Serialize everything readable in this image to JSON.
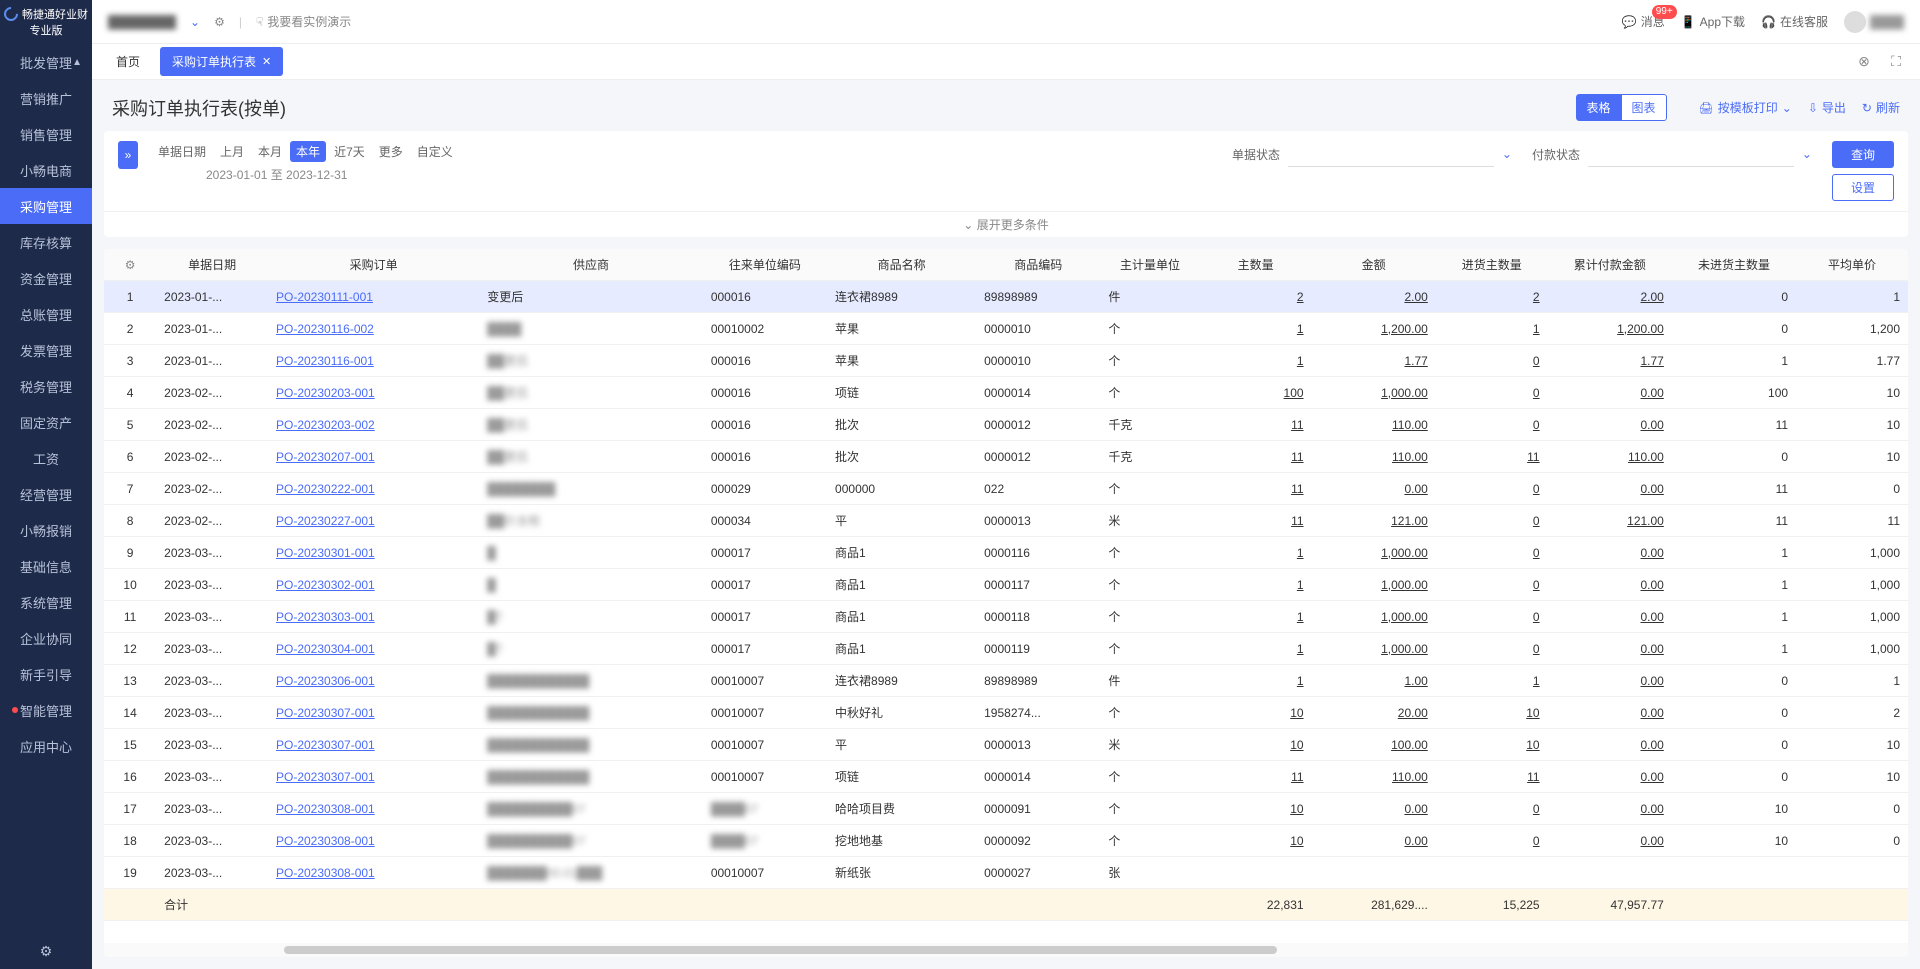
{
  "brand": {
    "name": "畅捷通好业财",
    "edition": "专业版"
  },
  "topbar": {
    "company": "████████",
    "demo": "我要看实例演示",
    "msg": "消息",
    "msg_badge": "99+",
    "app": "App下载",
    "service": "在线客服",
    "user": "████"
  },
  "sidebar": {
    "items": [
      {
        "label": "批发管理",
        "caret": "▲"
      },
      {
        "label": "营销推广"
      },
      {
        "label": "销售管理"
      },
      {
        "label": "小畅电商"
      },
      {
        "label": "采购管理",
        "active": true
      },
      {
        "label": "库存核算"
      },
      {
        "label": "资金管理"
      },
      {
        "label": "总账管理"
      },
      {
        "label": "发票管理"
      },
      {
        "label": "税务管理"
      },
      {
        "label": "固定资产"
      },
      {
        "label": "工资"
      },
      {
        "label": "经营管理"
      },
      {
        "label": "小畅报销"
      },
      {
        "label": "基础信息"
      },
      {
        "label": "系统管理"
      },
      {
        "label": "企业协同"
      },
      {
        "label": "新手引导"
      },
      {
        "label": "智能管理",
        "dot": true
      },
      {
        "label": "应用中心"
      }
    ]
  },
  "tabs": {
    "home": "首页",
    "active": "采购订单执行表"
  },
  "page": {
    "title": "采购订单执行表(按单)",
    "view_table": "表格",
    "view_chart": "图表",
    "print": "按模板打印",
    "export": "导出",
    "refresh": "刷新"
  },
  "filter": {
    "date_label": "单据日期",
    "opts": [
      "上月",
      "本月",
      "本年",
      "近7天",
      "更多",
      "自定义"
    ],
    "date_range": "2023-01-01 至 2023-12-31",
    "status_label": "单据状态",
    "pay_label": "付款状态",
    "query": "查询",
    "setting": "设置",
    "expand": "展开更多条件"
  },
  "table": {
    "headers": [
      "单据日期",
      "采购订单",
      "供应商",
      "往来单位编码",
      "商品名称",
      "商品编码",
      "主计量单位",
      "主数量",
      "金额",
      "进货主数量",
      "累计付款金额",
      "未进货主数量",
      "平均单价"
    ],
    "rows": [
      {
        "n": 1,
        "date": "2023-01-...",
        "po": "PO-20230111-001",
        "sup": "变更后",
        "sup_blur": false,
        "code": "000016",
        "prod": "连衣裙8989",
        "pcode": "89898989",
        "unit": "件",
        "qty": "2",
        "amt": "2.00",
        "in": "2",
        "paid": "2.00",
        "unin": "0",
        "avg": "1"
      },
      {
        "n": 2,
        "date": "2023-01-...",
        "po": "PO-20230116-002",
        "sup": "████",
        "sup_blur": true,
        "code": "00010002",
        "prod": "苹果",
        "pcode": "0000010",
        "unit": "个",
        "qty": "1",
        "amt": "1,200.00",
        "in": "1",
        "paid": "1,200.00",
        "unin": "0",
        "avg": "1,200"
      },
      {
        "n": 3,
        "date": "2023-01-...",
        "po": "PO-20230116-001",
        "sup": "██更后",
        "sup_blur": true,
        "code": "000016",
        "prod": "苹果",
        "pcode": "0000010",
        "unit": "个",
        "qty": "1",
        "amt": "1.77",
        "in": "0",
        "paid": "1.77",
        "unin": "1",
        "avg": "1.77"
      },
      {
        "n": 4,
        "date": "2023-02-...",
        "po": "PO-20230203-001",
        "sup": "██更后",
        "sup_blur": true,
        "code": "000016",
        "prod": "项链",
        "pcode": "0000014",
        "unit": "个",
        "qty": "100",
        "amt": "1,000.00",
        "in": "0",
        "paid": "0.00",
        "unin": "100",
        "avg": "10"
      },
      {
        "n": 5,
        "date": "2023-02-...",
        "po": "PO-20230203-002",
        "sup": "██更后",
        "sup_blur": true,
        "code": "000016",
        "prod": "批次",
        "pcode": "0000012",
        "unit": "千克",
        "qty": "11",
        "amt": "110.00",
        "in": "0",
        "paid": "0.00",
        "unin": "11",
        "avg": "10"
      },
      {
        "n": 6,
        "date": "2023-02-...",
        "po": "PO-20230207-001",
        "sup": "██更后",
        "sup_blur": true,
        "code": "000016",
        "prod": "批次",
        "pcode": "0000012",
        "unit": "千克",
        "qty": "11",
        "amt": "110.00",
        "in": "11",
        "paid": "110.00",
        "unin": "0",
        "avg": "10"
      },
      {
        "n": 7,
        "date": "2023-02-...",
        "po": "PO-20230222-001",
        "sup": "████████",
        "sup_blur": true,
        "code": "000029",
        "prod": "000000",
        "pcode": "022",
        "unit": "个",
        "qty": "11",
        "amt": "0.00",
        "in": "0",
        "paid": "0.00",
        "unin": "11",
        "avg": "0"
      },
      {
        "n": 8,
        "date": "2023-02-...",
        "po": "PO-20230227-001",
        "sup": "██价含税",
        "sup_blur": true,
        "code": "000034",
        "prod": "平",
        "pcode": "0000013",
        "unit": "米",
        "qty": "11",
        "amt": "121.00",
        "in": "0",
        "paid": "121.00",
        "unin": "11",
        "avg": "11"
      },
      {
        "n": 9,
        "date": "2023-03-...",
        "po": "PO-20230301-001",
        "sup": "█",
        "sup_blur": true,
        "code": "000017",
        "prod": "商品1",
        "pcode": "0000116",
        "unit": "个",
        "qty": "1",
        "amt": "1,000.00",
        "in": "0",
        "paid": "0.00",
        "unin": "1",
        "avg": "1,000"
      },
      {
        "n": 10,
        "date": "2023-03-...",
        "po": "PO-20230302-001",
        "sup": "█",
        "sup_blur": true,
        "code": "000017",
        "prod": "商品1",
        "pcode": "0000117",
        "unit": "个",
        "qty": "1",
        "amt": "1,000.00",
        "in": "0",
        "paid": "0.00",
        "unin": "1",
        "avg": "1,000"
      },
      {
        "n": 11,
        "date": "2023-03-...",
        "po": "PO-20230303-001",
        "sup": "█T",
        "sup_blur": true,
        "code": "000017",
        "prod": "商品1",
        "pcode": "0000118",
        "unit": "个",
        "qty": "1",
        "amt": "1,000.00",
        "in": "0",
        "paid": "0.00",
        "unin": "1",
        "avg": "1,000"
      },
      {
        "n": 12,
        "date": "2023-03-...",
        "po": "PO-20230304-001",
        "sup": "█T",
        "sup_blur": true,
        "code": "000017",
        "prod": "商品1",
        "pcode": "0000119",
        "unit": "个",
        "qty": "1",
        "amt": "1,000.00",
        "in": "0",
        "paid": "0.00",
        "unin": "1",
        "avg": "1,000"
      },
      {
        "n": 13,
        "date": "2023-03-...",
        "po": "PO-20230306-001",
        "sup": "████████████",
        "sup_blur": true,
        "code": "00010007",
        "prod": "连衣裙8989",
        "pcode": "89898989",
        "unit": "件",
        "qty": "1",
        "amt": "1.00",
        "in": "1",
        "paid": "0.00",
        "unin": "0",
        "avg": "1"
      },
      {
        "n": 14,
        "date": "2023-03-...",
        "po": "PO-20230307-001",
        "sup": "████████████",
        "sup_blur": true,
        "code": "00010007",
        "prod": "中秋好礼",
        "pcode": "1958274...",
        "unit": "个",
        "qty": "10",
        "amt": "20.00",
        "in": "10",
        "paid": "0.00",
        "unin": "0",
        "avg": "2"
      },
      {
        "n": 15,
        "date": "2023-03-...",
        "po": "PO-20230307-001",
        "sup": "████████████",
        "sup_blur": true,
        "code": "00010007",
        "prod": "平",
        "pcode": "0000013",
        "unit": "米",
        "qty": "10",
        "amt": "100.00",
        "in": "10",
        "paid": "0.00",
        "unin": "0",
        "avg": "10"
      },
      {
        "n": 16,
        "date": "2023-03-...",
        "po": "PO-20230307-001",
        "sup": "████████████",
        "sup_blur": true,
        "code": "00010007",
        "prod": "项链",
        "pcode": "0000014",
        "unit": "个",
        "qty": "11",
        "amt": "110.00",
        "in": "11",
        "paid": "0.00",
        "unin": "0",
        "avg": "10"
      },
      {
        "n": 17,
        "date": "2023-03-...",
        "po": "PO-20230308-001",
        "sup": "██████████07",
        "sup_blur": true,
        "code": "████07",
        "prod": "哈哈项目费",
        "pcode": "0000091",
        "unit": "个",
        "qty": "10",
        "amt": "0.00",
        "in": "0",
        "paid": "0.00",
        "unin": "10",
        "avg": "0"
      },
      {
        "n": 18,
        "date": "2023-03-...",
        "po": "PO-20230308-001",
        "sup": "██████████07",
        "sup_blur": true,
        "code": "████07",
        "prod": "挖地地基",
        "pcode": "0000092",
        "unit": "个",
        "qty": "10",
        "amt": "0.00",
        "in": "0",
        "paid": "0.00",
        "unin": "10",
        "avg": "0"
      },
      {
        "n": 19,
        "date": "2023-03-...",
        "po": "PO-20230308-001",
        "sup": "███████00.01███",
        "sup_blur": true,
        "code": "00010007",
        "prod": "新纸张",
        "pcode": "0000027",
        "unit": "张",
        "qty": "",
        "amt": "",
        "in": "",
        "paid": "",
        "unin": "",
        "avg": ""
      }
    ],
    "total": {
      "label": "合计",
      "qty": "22,831",
      "amt": "281,629....",
      "in": "15,225",
      "paid": "47,957.77"
    }
  }
}
